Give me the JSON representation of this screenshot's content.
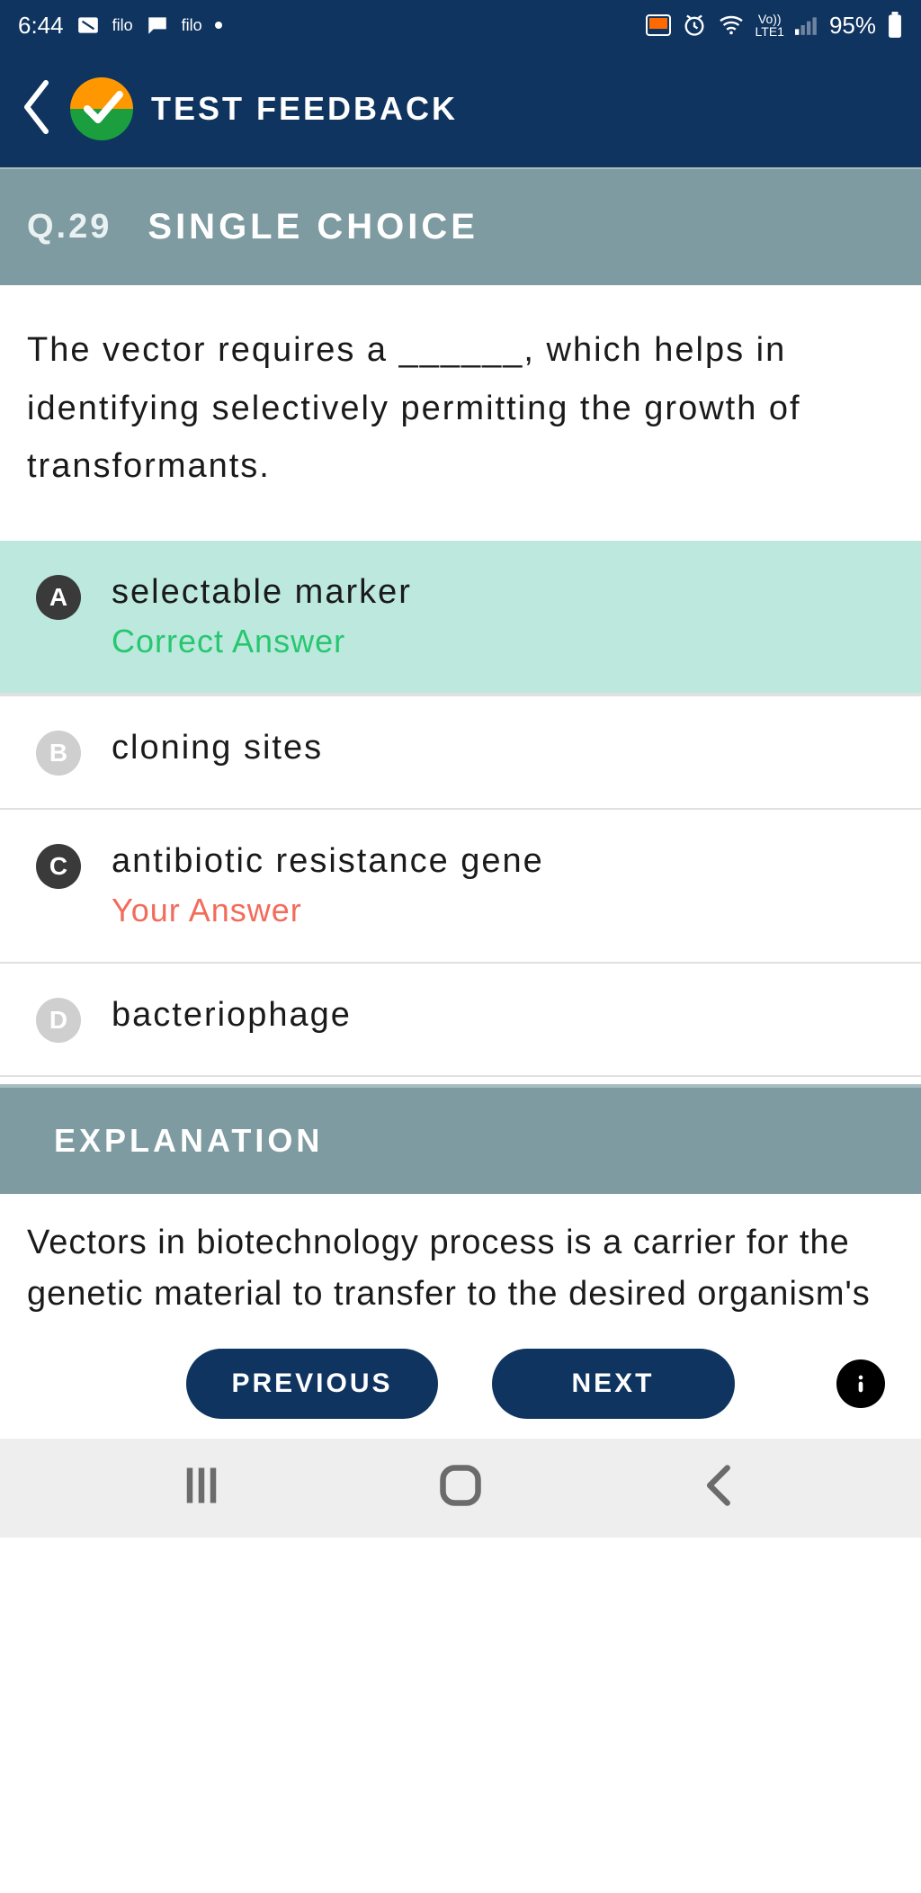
{
  "status": {
    "time": "6:44",
    "app1": "filo",
    "app2": "filo",
    "battery_pct": "95%",
    "network_label": "LTE1",
    "vo_label": "Vo))"
  },
  "header": {
    "title": "TEST FEEDBACK"
  },
  "question": {
    "number": "Q.29",
    "type": "SINGLE CHOICE",
    "text": "The vector requires a ______, which helps in identifying selectively permitting the growth of transformants."
  },
  "options": [
    {
      "letter": "A",
      "text": "selectable marker",
      "is_correct": true,
      "is_user": false,
      "letter_style": "dark"
    },
    {
      "letter": "B",
      "text": "cloning sites",
      "is_correct": false,
      "is_user": false,
      "letter_style": "light"
    },
    {
      "letter": "C",
      "text": "antibiotic resistance gene",
      "is_correct": false,
      "is_user": true,
      "letter_style": "dark"
    },
    {
      "letter": "D",
      "text": "bacteriophage",
      "is_correct": false,
      "is_user": false,
      "letter_style": "light"
    }
  ],
  "labels": {
    "correct": "Correct Answer",
    "your": "Your Answer"
  },
  "explanation": {
    "title": "EXPLANATION",
    "body": "Vectors in biotechnology process is a carrier for the genetic material to transfer to the desired organism's"
  },
  "buttons": {
    "previous": "PREVIOUS",
    "next": "NEXT"
  },
  "colors": {
    "header_bg": "#0f3460",
    "band_bg": "#7d9ba0",
    "correct_bg": "#bce8de",
    "correct_text": "#27c76f",
    "your_text": "#f26b5b",
    "opt_dark": "#3a3a3a",
    "opt_light": "#cfcfcf"
  }
}
